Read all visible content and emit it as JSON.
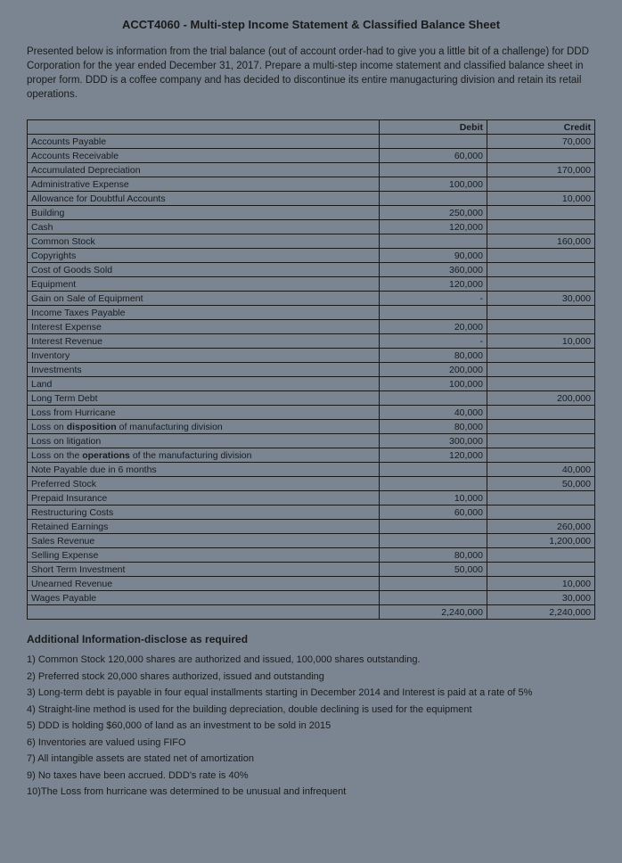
{
  "title": "ACCT4060 - Multi-step Income Statement & Classified Balance Sheet",
  "intro": "Presented below is information from the trial balance (out of account order-had to give you a little bit of a challenge) for DDD Corporation for the year ended December 31, 2017. Prepare a multi-step income statement and classified balance sheet in proper form. DDD is a coffee company and has decided to discontinue its entire manugacturing division and retain its retail operations.",
  "headers": {
    "debit": "Debit",
    "credit": "Credit"
  },
  "rows": [
    {
      "label": "Accounts Payable",
      "debit": "",
      "credit": "70,000"
    },
    {
      "label": "Accounts Receivable",
      "debit": "60,000",
      "credit": ""
    },
    {
      "label": "Accumulated Depreciation",
      "debit": "",
      "credit": "170,000"
    },
    {
      "label": "Administrative Expense",
      "debit": "100,000",
      "credit": ""
    },
    {
      "label": "Allowance for Doubtful Accounts",
      "debit": "",
      "credit": "10,000"
    },
    {
      "label": "Building",
      "debit": "250,000",
      "credit": ""
    },
    {
      "label": "Cash",
      "debit": "120,000",
      "credit": ""
    },
    {
      "label": "Common Stock",
      "debit": "",
      "credit": "160,000"
    },
    {
      "label": "Copyrights",
      "debit": "90,000",
      "credit": ""
    },
    {
      "label": "Cost of Goods Sold",
      "debit": "360,000",
      "credit": ""
    },
    {
      "label": "Equipment",
      "debit": "120,000",
      "credit": ""
    },
    {
      "label": "Gain on Sale of Equipment",
      "debit": "-",
      "credit": "30,000"
    },
    {
      "label": "Income Taxes Payable",
      "debit": "",
      "credit": ""
    },
    {
      "label": "Interest Expense",
      "debit": "20,000",
      "credit": ""
    },
    {
      "label": "Interest Revenue",
      "debit": "-",
      "credit": "10,000"
    },
    {
      "label": "Inventory",
      "debit": "80,000",
      "credit": ""
    },
    {
      "label": "Investments",
      "debit": "200,000",
      "credit": ""
    },
    {
      "label": "Land",
      "debit": "100,000",
      "credit": ""
    },
    {
      "label": "Long Term Debt",
      "debit": "",
      "credit": "200,000"
    },
    {
      "label": "Loss from Hurricane",
      "debit": "40,000",
      "credit": ""
    },
    {
      "label": "Loss on disposition of manufacturing division",
      "debit": "80,000",
      "credit": "",
      "boldWord": true
    },
    {
      "label": "Loss on litigation",
      "debit": "300,000",
      "credit": ""
    },
    {
      "label": "Loss on the operations of the manufacturing division",
      "debit": "120,000",
      "credit": "",
      "boldWord": true
    },
    {
      "label": "Note Payable due in 6 months",
      "debit": "",
      "credit": "40,000"
    },
    {
      "label": "Preferred Stock",
      "debit": "",
      "credit": "50,000"
    },
    {
      "label": "Prepaid Insurance",
      "debit": "10,000",
      "credit": ""
    },
    {
      "label": "Restructuring Costs",
      "debit": "60,000",
      "credit": ""
    },
    {
      "label": "Retained Earnings",
      "debit": "",
      "credit": "260,000"
    },
    {
      "label": "Sales Revenue",
      "debit": "",
      "credit": "1,200,000"
    },
    {
      "label": "Selling Expense",
      "debit": "80,000",
      "credit": ""
    },
    {
      "label": "Short Term Investment",
      "debit": "50,000",
      "credit": ""
    },
    {
      "label": "Unearned Revenue",
      "debit": "",
      "credit": "10,000"
    },
    {
      "label": "Wages Payable",
      "debit": "",
      "credit": "30,000"
    }
  ],
  "totals": {
    "debit": "2,240,000",
    "credit": "2,240,000"
  },
  "additional_title": "Additional Information-disclose as required",
  "additional": [
    "1) Common Stock 120,000 shares are authorized and issued, 100,000 shares outstanding.",
    "2) Preferred stock 20,000 shares authorized, issued and outstanding",
    "3) Long-term debt is payable in four equal installments starting in December 2014 and Interest is paid at a rate of 5%",
    "4) Straight-line method is used for the building depreciation, double declining is used for the equipment",
    "5) DDD is holding $60,000 of land as an investment to be sold in 2015",
    "6) Inventories are valued using FIFO",
    "7) All intangible assets are stated net of amortization",
    "9) No taxes have been accrued. DDD's rate is 40%",
    "10)The Loss from hurricane was determined to be unusual and infrequent"
  ]
}
